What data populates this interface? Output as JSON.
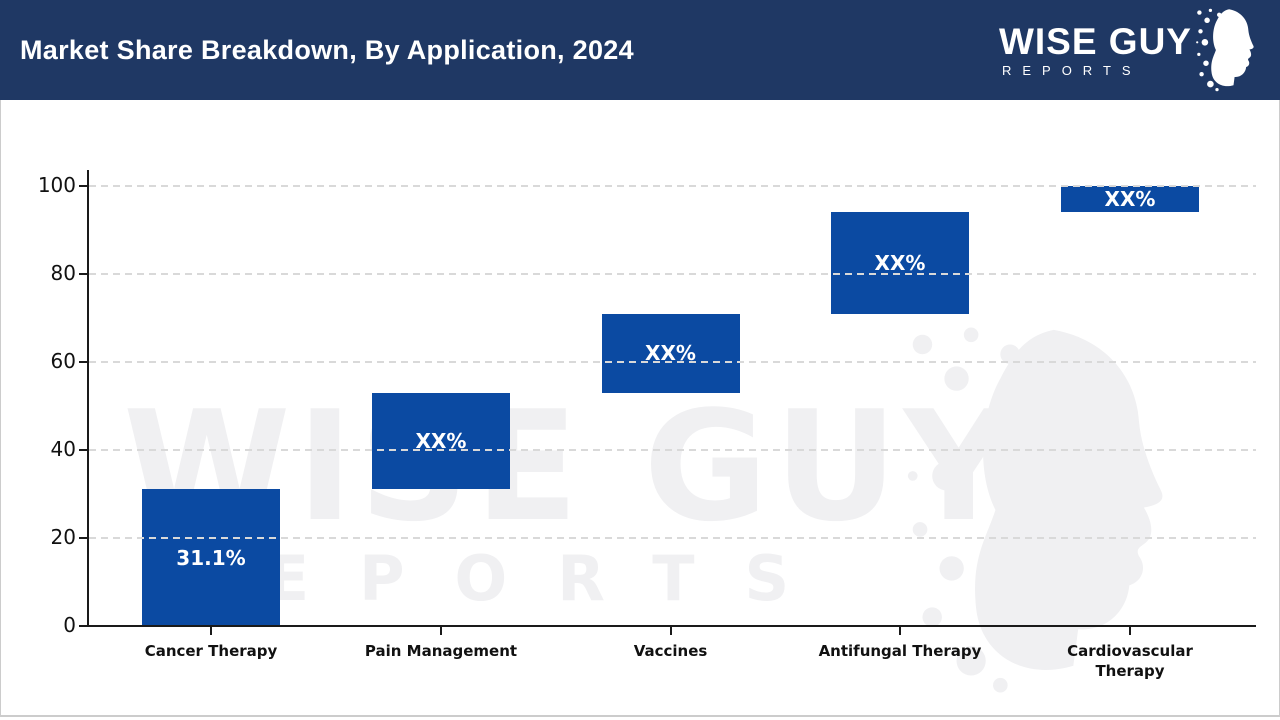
{
  "header": {
    "title": "Market Share Breakdown, By Application, 2024",
    "logo": {
      "line1": "WISE GUY",
      "line2": "REPORTS"
    }
  },
  "watermark": {
    "line1": "WISE GUY",
    "line2": "REPORTS"
  },
  "colors": {
    "header_bg": "#1F3864",
    "bar": "#0B4AA2",
    "grid": "#D9D9D9",
    "axis": "#1A1A1A",
    "bar_label": "#FFFFFF",
    "watermark": "#F0F0F2"
  },
  "chart_data": {
    "type": "bar",
    "subtype": "waterfall",
    "title": "Market Share Breakdown, By Application, 2024",
    "xlabel": "",
    "ylabel": "",
    "ylim": [
      0,
      105
    ],
    "yticks": [
      0,
      20,
      40,
      60,
      80,
      100
    ],
    "grid": "horizontal-dashed",
    "legend": "none",
    "categories": [
      "Cancer Therapy",
      "Pain Management",
      "Vaccines",
      "Antifungal Therapy",
      "Cardiovascular Therapy"
    ],
    "segments": [
      {
        "category": "Cancer Therapy",
        "start": 0,
        "end": 31.1,
        "value_label": "31.1%"
      },
      {
        "category": "Pain Management",
        "start": 31.1,
        "end": 53.0,
        "value_label": "XX%"
      },
      {
        "category": "Vaccines",
        "start": 53.0,
        "end": 71.0,
        "value_label": "XX%"
      },
      {
        "category": "Antifungal Therapy",
        "start": 71.0,
        "end": 94.0,
        "value_label": "XX%"
      },
      {
        "category": "Cardiovascular Therapy",
        "start": 94.0,
        "end": 100.0,
        "value_label": "XX%"
      }
    ]
  }
}
